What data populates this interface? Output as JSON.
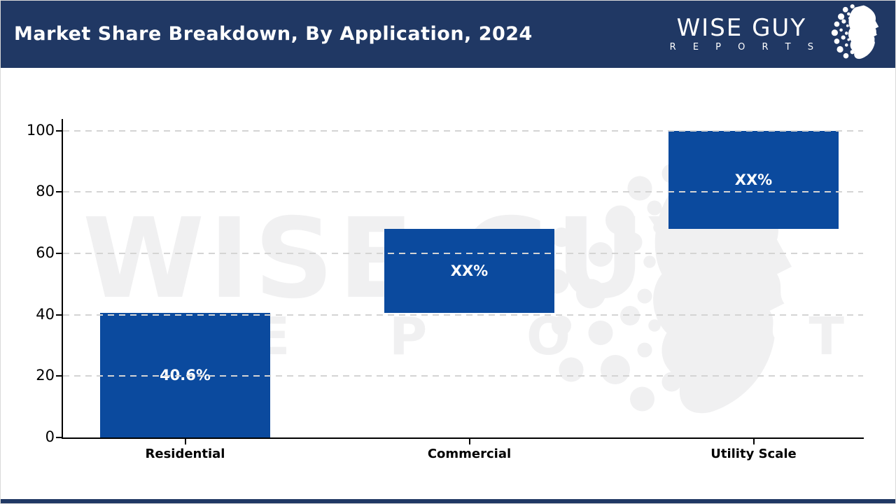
{
  "header": {
    "title": "Market Share Breakdown, By Application, 2024",
    "logo": {
      "line1": "WISE GUY",
      "line2": "R E P O R T S"
    }
  },
  "watermark": {
    "line1": "WISE GUY",
    "line2": "R E P O R T S"
  },
  "colors": {
    "header_bg": "#203864",
    "footer_bg": "#203864",
    "bar": "#0b4a9e",
    "gridline": "#d4d4d4",
    "axis": "#000000",
    "watermark": "#f0f0f1"
  },
  "chart_data": {
    "type": "bar",
    "subtype": "waterfall",
    "title": "Market Share Breakdown, By Application, 2024",
    "categories": [
      "Residential",
      "Commercial",
      "Utility Scale"
    ],
    "segments": [
      {
        "category": "Residential",
        "start": 0,
        "end": 40.6,
        "label": "40.6%"
      },
      {
        "category": "Commercial",
        "start": 40.6,
        "end": 68,
        "label": "XX%"
      },
      {
        "category": "Utility Scale",
        "start": 68,
        "end": 100,
        "label": "XX%"
      }
    ],
    "xlabel": "",
    "ylabel": "",
    "ylim": [
      0,
      100
    ],
    "yticks": [
      0,
      20,
      40,
      60,
      80,
      100
    ],
    "grid": "horizontal-dashed",
    "legend": "none",
    "bar_color": "#0b4a9e"
  }
}
